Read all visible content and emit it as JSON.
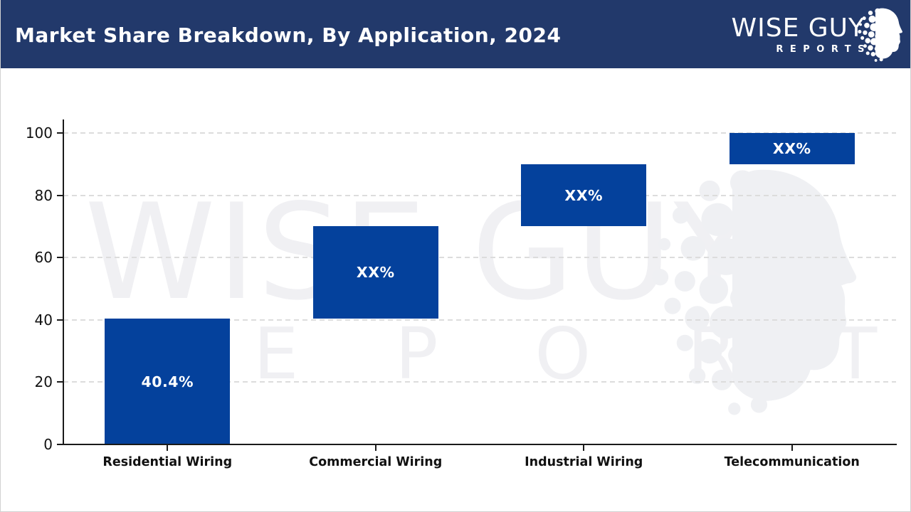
{
  "header": {
    "title": "Market Share Breakdown, By Application, 2024",
    "logo": {
      "line1": "WISE GUY",
      "line2": "REPORTS"
    }
  },
  "watermark": {
    "line1": "WISE GUY",
    "line2": "R E P O R T S"
  },
  "chart_data": {
    "type": "bar",
    "subtype": "waterfall-market-share",
    "title": "Market Share Breakdown, By Application, 2024",
    "categories": [
      "Residential Wiring",
      "Commercial Wiring",
      "Industrial Wiring",
      "Telecommunication"
    ],
    "segments": [
      {
        "category": "Residential Wiring",
        "start": 0,
        "end": 40.4,
        "label": "40.4%"
      },
      {
        "category": "Commercial Wiring",
        "start": 40.4,
        "end": 70,
        "label": "XX%"
      },
      {
        "category": "Industrial Wiring",
        "start": 70,
        "end": 90,
        "label": "XX%"
      },
      {
        "category": "Telecommunication",
        "start": 90,
        "end": 100,
        "label": "XX%"
      }
    ],
    "xlabel": "",
    "ylabel": "",
    "ylim": [
      0,
      100
    ],
    "yticks": [
      0,
      20,
      40,
      60,
      80,
      100
    ],
    "grid": "horizontal-dashed",
    "legend": "none",
    "colors": {
      "bar": "#04419c",
      "bar_label": "#ffffff",
      "axis": "#1a1a1a",
      "gridline": "#dcdcdc",
      "header_bg": "#22396b",
      "header_text": "#ffffff",
      "watermark": "#f0f0f3"
    }
  }
}
